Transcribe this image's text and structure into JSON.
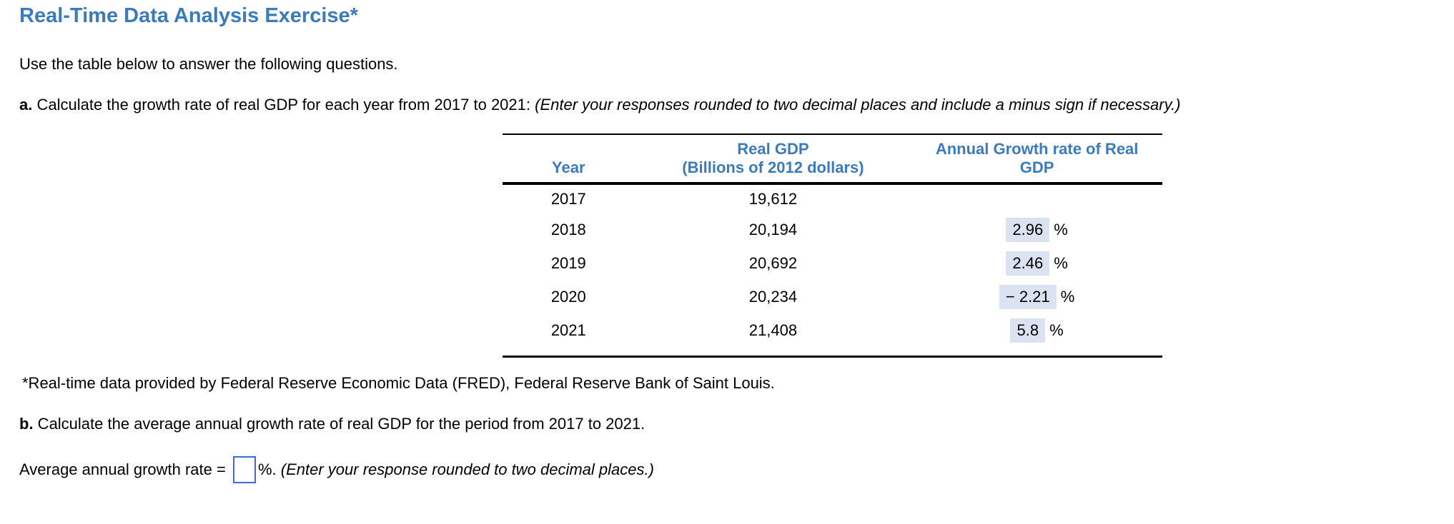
{
  "title": "Real-Time Data Analysis Exercise*",
  "intro": "Use the table below to answer the following questions.",
  "part_a": {
    "label": "a.",
    "text": " Calculate the growth rate of real GDP for each year from 2017 to 2021: ",
    "instruction": "(Enter your responses rounded to two decimal places and include a minus sign if necessary.)"
  },
  "table": {
    "header": {
      "year": "Year",
      "gdp_line1": "Real GDP",
      "gdp_line2": "(Billions of 2012 dollars)",
      "growth_line1": "Annual Growth rate of Real",
      "growth_line2": "GDP"
    },
    "rows": [
      {
        "year": "2017",
        "gdp": "19,612",
        "growth": "",
        "unit": ""
      },
      {
        "year": "2018",
        "gdp": "20,194",
        "growth": "2.96",
        "unit": " %"
      },
      {
        "year": "2019",
        "gdp": "20,692",
        "growth": "2.46",
        "unit": " %"
      },
      {
        "year": "2020",
        "gdp": "20,234",
        "growth": "− 2.21",
        "unit": " %"
      },
      {
        "year": "2021",
        "gdp": "21,408",
        "growth": "5.8",
        "unit": " %"
      }
    ]
  },
  "footnote": "*Real-time data provided by Federal Reserve Economic Data (FRED), Federal Reserve Bank of Saint Louis.",
  "part_b": {
    "label": "b.",
    "text": " Calculate the average annual growth rate of real GDP for the period from 2017 to 2021."
  },
  "answer_line": {
    "prefix": "Average annual growth rate = ",
    "input_value": "",
    "suffix": "%. ",
    "instruction": "(Enter your response rounded to two decimal places.)"
  },
  "colors": {
    "heading_blue": "#3b7bbd",
    "answer_highlight": "#dbe2f1",
    "input_border": "#4169cf"
  }
}
